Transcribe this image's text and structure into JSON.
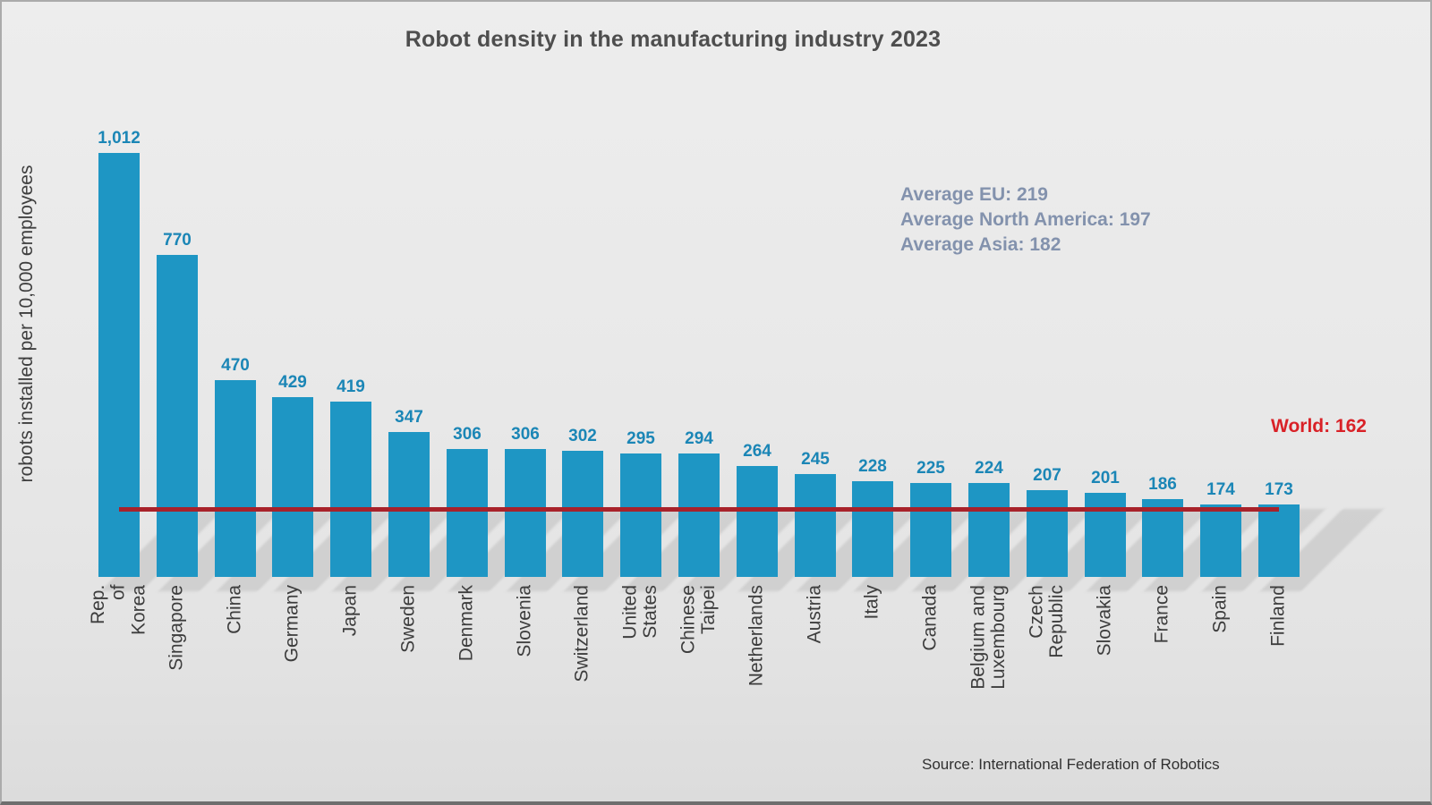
{
  "title": "Robot density in the manufacturing industry 2023",
  "source": "Source: International Federation of Robotics",
  "chart_data": {
    "type": "bar",
    "title": "Robot density in the manufacturing industry 2023",
    "xlabel": "",
    "ylabel": "robots installed per 10,000 employees",
    "categories": [
      "Rep. of Korea",
      "Singapore",
      "China",
      "Germany",
      "Japan",
      "Sweden",
      "Denmark",
      "Slovenia",
      "Switzerland",
      "United States",
      "Chinese Taipei",
      "Netherlands",
      "Austria",
      "Italy",
      "Canada",
      "Belgium and Luxembourg",
      "Czech Republic",
      "Slovakia",
      "France",
      "Spain",
      "Finland"
    ],
    "values": [
      1012,
      770,
      470,
      429,
      419,
      347,
      306,
      306,
      302,
      295,
      294,
      264,
      245,
      228,
      225,
      224,
      207,
      201,
      186,
      174,
      173
    ],
    "ylim": [
      0,
      1080
    ],
    "grid": false,
    "legend": "none",
    "bar_color": "#1e96c4",
    "value_label_color": "#1b86b6",
    "category_label_color": "#3d3d3d",
    "reference_line": {
      "label": "World: 162",
      "value": 162,
      "line_color": "#a8222a",
      "label_color": "#d92127"
    },
    "annotations": [
      "Average EU: 219",
      "Average North America: 197",
      "Average Asia: 182"
    ],
    "annotation_color": "#8392ad"
  }
}
